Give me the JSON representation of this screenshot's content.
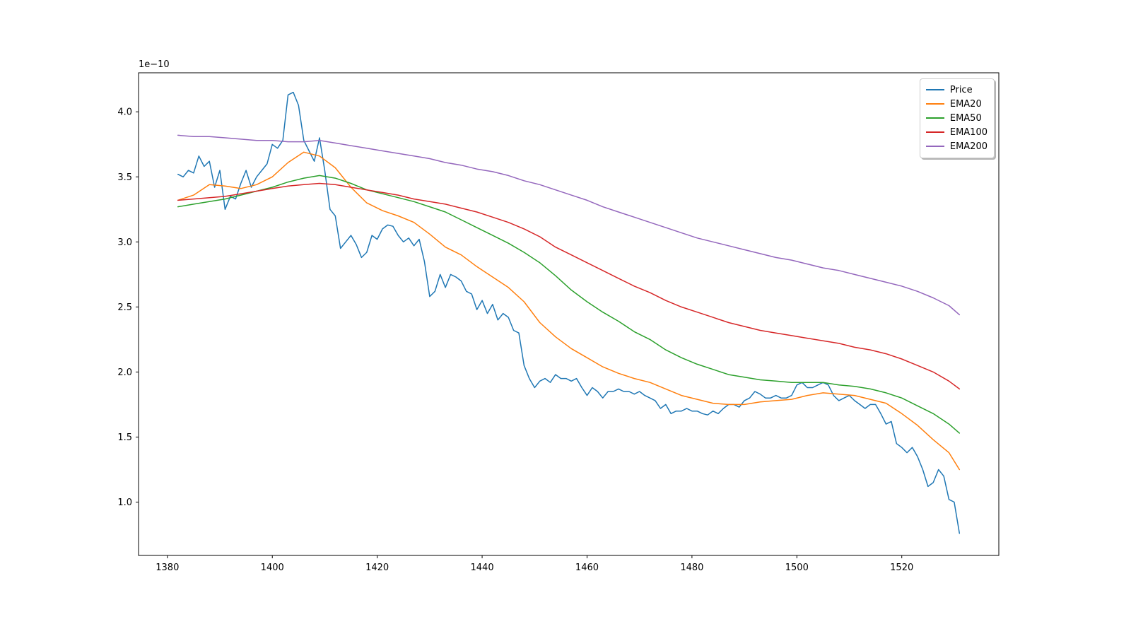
{
  "chart_data": {
    "type": "line",
    "title": "",
    "xlabel": "",
    "ylabel": "",
    "y_offset_label": "1e−10",
    "grid": false,
    "legend_position": "upper right",
    "xlim": [
      1374.5,
      1538.5
    ],
    "ylim": [
      0.59,
      4.3
    ],
    "x_ticks": [
      1380,
      1400,
      1420,
      1440,
      1460,
      1480,
      1500,
      1520
    ],
    "y_ticks": [
      1.0,
      1.5,
      2.0,
      2.5,
      3.0,
      3.5,
      4.0
    ],
    "value_scale": "1e-10",
    "series": [
      {
        "name": "Price",
        "color": "#1f77b4",
        "x_start": 1382,
        "x_step": 1,
        "values": [
          3.52,
          3.5,
          3.55,
          3.53,
          3.66,
          3.58,
          3.62,
          3.42,
          3.55,
          3.25,
          3.35,
          3.33,
          3.45,
          3.55,
          3.42,
          3.5,
          3.55,
          3.6,
          3.75,
          3.72,
          3.78,
          4.13,
          4.15,
          4.05,
          3.78,
          3.7,
          3.62,
          3.8,
          3.55,
          3.25,
          3.2,
          2.95,
          3.0,
          3.05,
          2.98,
          2.88,
          2.92,
          3.05,
          3.02,
          3.1,
          3.13,
          3.12,
          3.05,
          3.0,
          3.03,
          2.97,
          3.02,
          2.85,
          2.58,
          2.62,
          2.75,
          2.65,
          2.75,
          2.73,
          2.7,
          2.62,
          2.6,
          2.48,
          2.55,
          2.45,
          2.52,
          2.4,
          2.45,
          2.42,
          2.32,
          2.3,
          2.05,
          1.95,
          1.88,
          1.93,
          1.95,
          1.92,
          1.98,
          1.95,
          1.95,
          1.93,
          1.95,
          1.88,
          1.82,
          1.88,
          1.85,
          1.8,
          1.85,
          1.85,
          1.87,
          1.85,
          1.85,
          1.83,
          1.85,
          1.82,
          1.8,
          1.78,
          1.72,
          1.75,
          1.68,
          1.7,
          1.7,
          1.72,
          1.7,
          1.7,
          1.68,
          1.67,
          1.7,
          1.68,
          1.72,
          1.75,
          1.75,
          1.73,
          1.78,
          1.8,
          1.85,
          1.83,
          1.8,
          1.8,
          1.82,
          1.8,
          1.8,
          1.82,
          1.9,
          1.92,
          1.88,
          1.88,
          1.9,
          1.92,
          1.9,
          1.82,
          1.78,
          1.8,
          1.82,
          1.78,
          1.75,
          1.72,
          1.75,
          1.75,
          1.68,
          1.6,
          1.62,
          1.45,
          1.42,
          1.38,
          1.42,
          1.35,
          1.25,
          1.12,
          1.15,
          1.25,
          1.2,
          1.02,
          1.0,
          0.76
        ]
      },
      {
        "name": "EMA20",
        "color": "#ff7f0e",
        "x": [
          1382,
          1385,
          1388,
          1391,
          1394,
          1397,
          1400,
          1403,
          1406,
          1409,
          1412,
          1415,
          1418,
          1421,
          1424,
          1427,
          1430,
          1433,
          1436,
          1439,
          1442,
          1445,
          1448,
          1451,
          1454,
          1457,
          1460,
          1463,
          1466,
          1469,
          1472,
          1475,
          1478,
          1481,
          1484,
          1487,
          1490,
          1493,
          1496,
          1499,
          1502,
          1505,
          1508,
          1511,
          1514,
          1517,
          1520,
          1523,
          1526,
          1529,
          1531
        ],
        "values": [
          3.32,
          3.36,
          3.44,
          3.43,
          3.41,
          3.44,
          3.5,
          3.61,
          3.69,
          3.66,
          3.57,
          3.42,
          3.3,
          3.24,
          3.2,
          3.15,
          3.06,
          2.96,
          2.9,
          2.81,
          2.73,
          2.65,
          2.54,
          2.38,
          2.27,
          2.18,
          2.11,
          2.04,
          1.99,
          1.95,
          1.92,
          1.87,
          1.82,
          1.79,
          1.76,
          1.75,
          1.75,
          1.77,
          1.78,
          1.79,
          1.82,
          1.84,
          1.83,
          1.82,
          1.79,
          1.76,
          1.68,
          1.59,
          1.48,
          1.38,
          1.25
        ]
      },
      {
        "name": "EMA50",
        "color": "#2ca02c",
        "x": [
          1382,
          1385,
          1388,
          1391,
          1394,
          1397,
          1400,
          1403,
          1406,
          1409,
          1412,
          1415,
          1418,
          1421,
          1424,
          1427,
          1430,
          1433,
          1436,
          1439,
          1442,
          1445,
          1448,
          1451,
          1454,
          1457,
          1460,
          1463,
          1466,
          1469,
          1472,
          1475,
          1478,
          1481,
          1484,
          1487,
          1490,
          1493,
          1496,
          1499,
          1502,
          1505,
          1508,
          1511,
          1514,
          1517,
          1520,
          1523,
          1526,
          1529,
          1531
        ],
        "values": [
          3.27,
          3.29,
          3.31,
          3.33,
          3.36,
          3.39,
          3.42,
          3.46,
          3.49,
          3.51,
          3.49,
          3.45,
          3.4,
          3.37,
          3.34,
          3.31,
          3.27,
          3.23,
          3.17,
          3.11,
          3.05,
          2.99,
          2.92,
          2.84,
          2.74,
          2.63,
          2.54,
          2.46,
          2.39,
          2.31,
          2.25,
          2.17,
          2.11,
          2.06,
          2.02,
          1.98,
          1.96,
          1.94,
          1.93,
          1.92,
          1.92,
          1.92,
          1.9,
          1.89,
          1.87,
          1.84,
          1.8,
          1.74,
          1.68,
          1.6,
          1.53
        ]
      },
      {
        "name": "EMA100",
        "color": "#d62728",
        "x": [
          1382,
          1385,
          1388,
          1391,
          1394,
          1397,
          1400,
          1403,
          1406,
          1409,
          1412,
          1415,
          1418,
          1421,
          1424,
          1427,
          1430,
          1433,
          1436,
          1439,
          1442,
          1445,
          1448,
          1451,
          1454,
          1457,
          1460,
          1463,
          1466,
          1469,
          1472,
          1475,
          1478,
          1481,
          1484,
          1487,
          1490,
          1493,
          1496,
          1499,
          1502,
          1505,
          1508,
          1511,
          1514,
          1517,
          1520,
          1523,
          1526,
          1529,
          1531
        ],
        "values": [
          3.32,
          3.33,
          3.34,
          3.35,
          3.37,
          3.39,
          3.41,
          3.43,
          3.44,
          3.45,
          3.44,
          3.42,
          3.4,
          3.38,
          3.36,
          3.33,
          3.31,
          3.29,
          3.26,
          3.23,
          3.19,
          3.15,
          3.1,
          3.04,
          2.96,
          2.9,
          2.84,
          2.78,
          2.72,
          2.66,
          2.61,
          2.55,
          2.5,
          2.46,
          2.42,
          2.38,
          2.35,
          2.32,
          2.3,
          2.28,
          2.26,
          2.24,
          2.22,
          2.19,
          2.17,
          2.14,
          2.1,
          2.05,
          2.0,
          1.93,
          1.87
        ]
      },
      {
        "name": "EMA200",
        "color": "#9467bd",
        "x": [
          1382,
          1385,
          1388,
          1391,
          1394,
          1397,
          1400,
          1403,
          1406,
          1409,
          1412,
          1415,
          1418,
          1421,
          1424,
          1427,
          1430,
          1433,
          1436,
          1439,
          1442,
          1445,
          1448,
          1451,
          1454,
          1457,
          1460,
          1463,
          1466,
          1469,
          1472,
          1475,
          1478,
          1481,
          1484,
          1487,
          1490,
          1493,
          1496,
          1499,
          1502,
          1505,
          1508,
          1511,
          1514,
          1517,
          1520,
          1523,
          1526,
          1529,
          1531
        ],
        "values": [
          3.82,
          3.81,
          3.81,
          3.8,
          3.79,
          3.78,
          3.78,
          3.77,
          3.77,
          3.78,
          3.76,
          3.74,
          3.72,
          3.7,
          3.68,
          3.66,
          3.64,
          3.61,
          3.59,
          3.56,
          3.54,
          3.51,
          3.47,
          3.44,
          3.4,
          3.36,
          3.32,
          3.27,
          3.23,
          3.19,
          3.15,
          3.11,
          3.07,
          3.03,
          3.0,
          2.97,
          2.94,
          2.91,
          2.88,
          2.86,
          2.83,
          2.8,
          2.78,
          2.75,
          2.72,
          2.69,
          2.66,
          2.62,
          2.57,
          2.51,
          2.44
        ]
      }
    ]
  }
}
